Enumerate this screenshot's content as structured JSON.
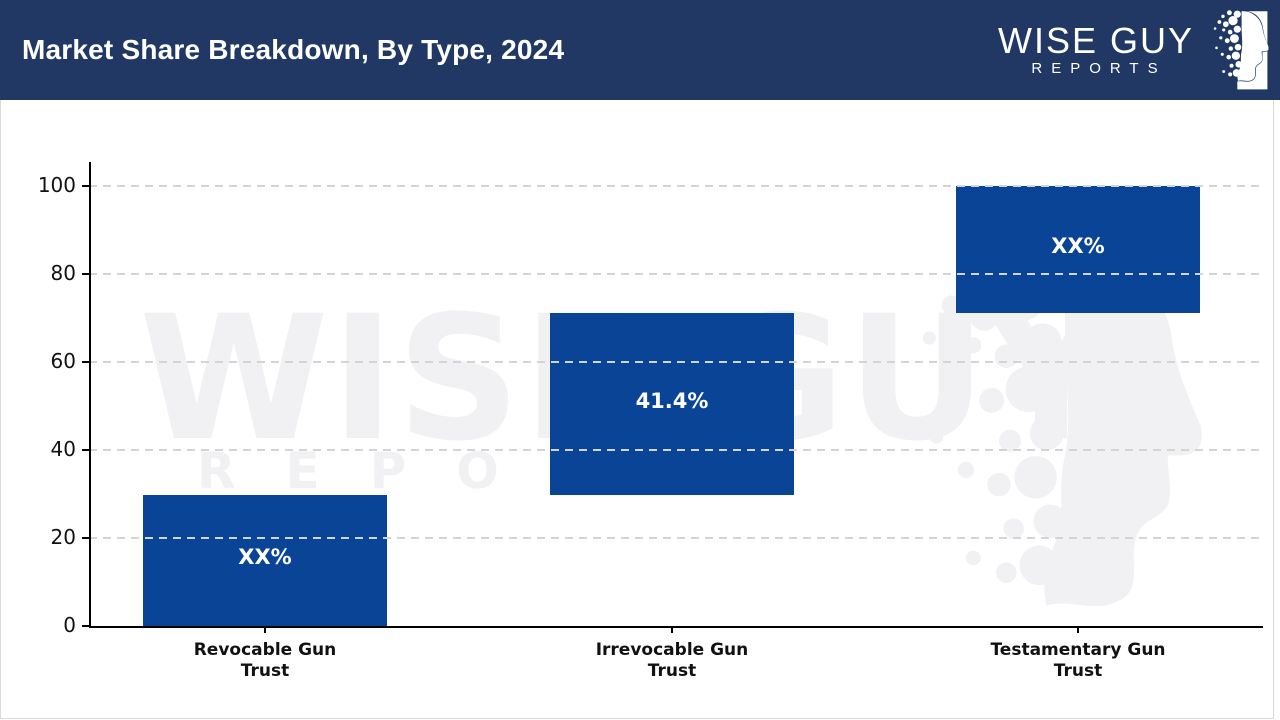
{
  "header": {
    "title": "Market Share Breakdown, By Type, 2024",
    "logo": {
      "line1": "WISE GUY",
      "line2": "REPORTS"
    }
  },
  "watermark": {
    "line1": "WISE GUY",
    "line2": "REPORTS"
  },
  "colors": {
    "header_bg": "#213864",
    "bar": "#0a4496",
    "bar_label": "#ffffff",
    "grid": "#d4d4d4",
    "axis": "#000000",
    "text": "#111111",
    "watermark": "#f1f1f4",
    "border": "#d9d9d9"
  },
  "chart_data": {
    "type": "bar",
    "subtype": "waterfall",
    "title": "Market Share Breakdown, By Type, 2024",
    "categories": [
      [
        "Revocable Gun",
        "Trust"
      ],
      [
        "Irrevocable Gun",
        "Trust"
      ],
      [
        "Testamentary Gun",
        "Trust"
      ]
    ],
    "segments": [
      {
        "start": 0,
        "end": 29.8,
        "value": 29.8,
        "label": "XX%"
      },
      {
        "start": 29.8,
        "end": 71.2,
        "value": 41.4,
        "label": "41.4%"
      },
      {
        "start": 71.2,
        "end": 100,
        "value": 28.8,
        "label": "XX%"
      }
    ],
    "xlabel": "",
    "ylabel": "",
    "ylim": [
      0,
      100
    ],
    "yticks": [
      0,
      20,
      40,
      60,
      80,
      100
    ],
    "grid": "horizontal-dashed",
    "legend": "none"
  }
}
